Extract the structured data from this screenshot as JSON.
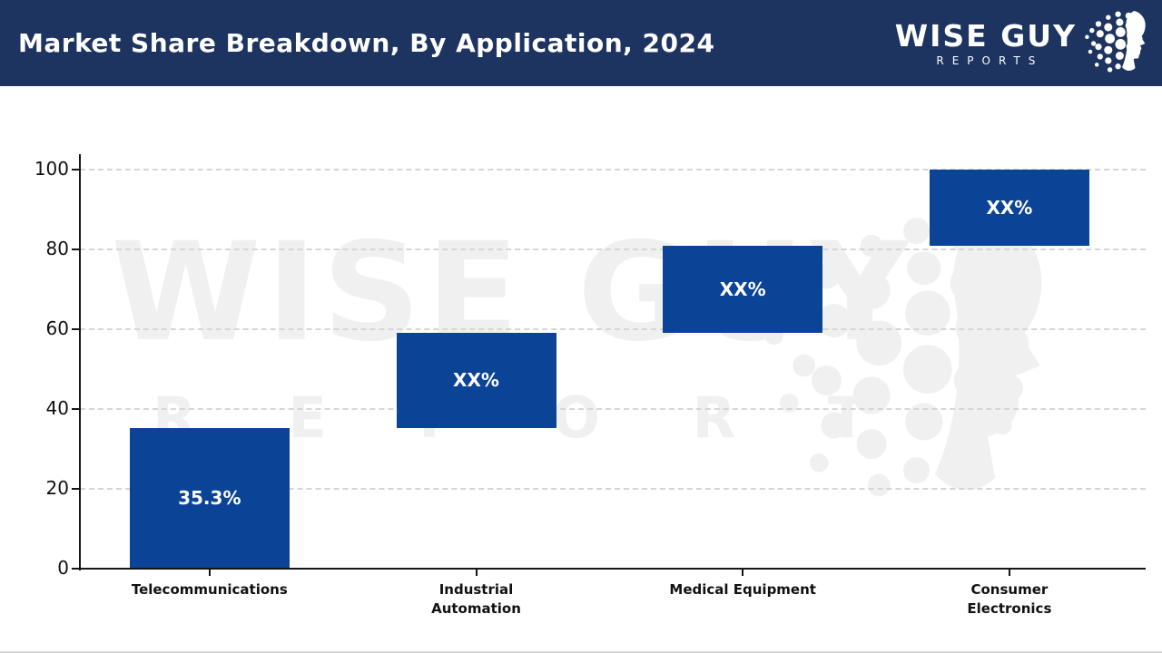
{
  "header": {
    "title": "Market Share Breakdown, By Application, 2024",
    "brand": {
      "line1": "WISE GUY",
      "line2": "REPORTS"
    }
  },
  "watermark": {
    "line1": "WISE GUY",
    "line2": "R E P O R T S"
  },
  "chart_data": {
    "type": "bar",
    "subtype": "waterfall",
    "title": "Market Share Breakdown, By Application, 2024",
    "xlabel": "",
    "ylabel": "",
    "ylim": [
      0,
      100
    ],
    "y_ticks": [
      0,
      20,
      40,
      60,
      80,
      100
    ],
    "grid": "horizontal dashed",
    "bar_color": "#0b4397",
    "categories": [
      "Telecommunications",
      "Industrial Automation",
      "Medical Equipment",
      "Consumer Electronics"
    ],
    "category_label_lines": [
      [
        "Telecommunications"
      ],
      [
        "Industrial",
        "Automation"
      ],
      [
        "Medical Equipment"
      ],
      [
        "Consumer",
        "Electronics"
      ]
    ],
    "segments": [
      {
        "category": "Telecommunications",
        "start": 0,
        "end": 35.3,
        "value_label": "35.3%"
      },
      {
        "category": "Industrial Automation",
        "start": 35.3,
        "end": 59.1,
        "value_label": "XX%"
      },
      {
        "category": "Medical Equipment",
        "start": 59.1,
        "end": 80.9,
        "value_label": "XX%"
      },
      {
        "category": "Consumer Electronics",
        "start": 80.9,
        "end": 100,
        "value_label": "XX%"
      }
    ]
  },
  "colors": {
    "header_bg": "#1e3460",
    "bar": "#0b4397",
    "watermark": "#f0f0f0",
    "gridline": "#d6d6d6"
  }
}
